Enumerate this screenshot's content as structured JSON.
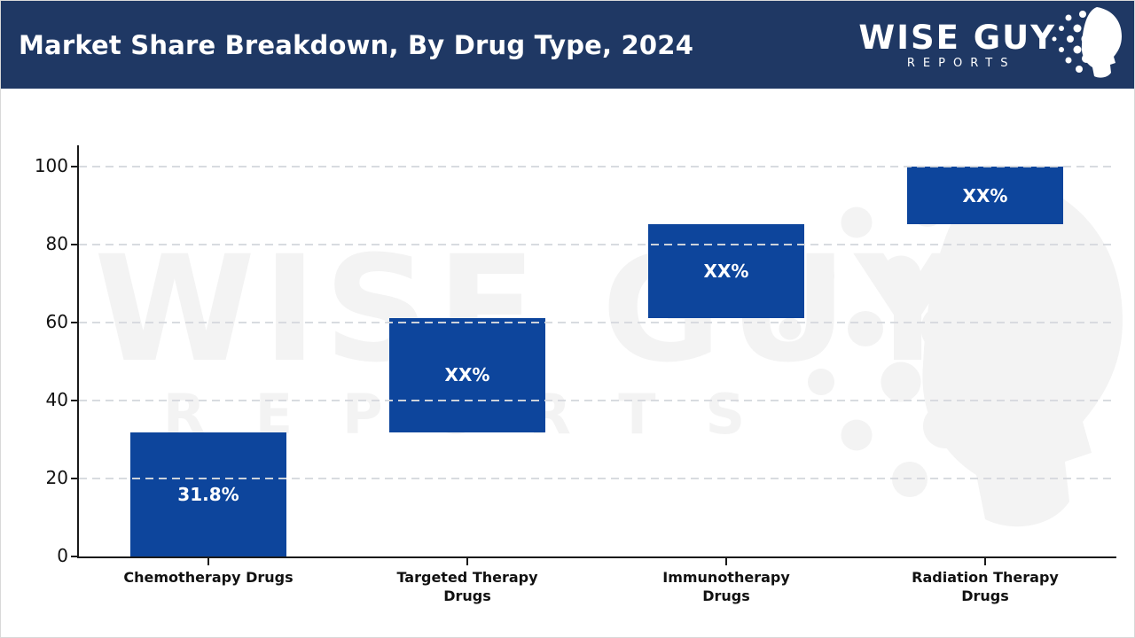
{
  "header": {
    "title": "Market Share Breakdown, By Drug Type, 2024",
    "logo": {
      "name": "WISE GUY",
      "sub": "REPORTS"
    }
  },
  "watermark": {
    "name": "WISE GUY",
    "sub": "REPORTS"
  },
  "chart_data": {
    "type": "bar",
    "subtype": "waterfall",
    "title": "Market Share Breakdown, By Drug Type, 2024",
    "categories": [
      "Chemotherapy Drugs",
      "Targeted Therapy Drugs",
      "Immunotherapy Drugs",
      "Radiation Therapy Drugs"
    ],
    "category_label_lines": [
      [
        "Chemotherapy Drugs"
      ],
      [
        "Targeted Therapy",
        "Drugs"
      ],
      [
        "Immunotherapy",
        "Drugs"
      ],
      [
        "Radiation Therapy",
        "Drugs"
      ]
    ],
    "segments": [
      {
        "category": "Chemotherapy Drugs",
        "start": 0,
        "end": 31.8,
        "label": "31.8%"
      },
      {
        "category": "Targeted Therapy Drugs",
        "start": 31.8,
        "end": 61.2,
        "label": "XX%"
      },
      {
        "category": "Immunotherapy Drugs",
        "start": 61.2,
        "end": 85.2,
        "label": "XX%"
      },
      {
        "category": "Radiation Therapy Drugs",
        "start": 85.2,
        "end": 100,
        "label": "XX%"
      }
    ],
    "xlabel": "",
    "ylabel": "",
    "ylim": [
      0,
      100
    ],
    "yticks": [
      0,
      20,
      40,
      60,
      80,
      100
    ],
    "grid": "horizontal-dashed",
    "legend_position": "none"
  },
  "colors": {
    "header_bg": "#1f3864",
    "bar": "#0d459c",
    "bar_label": "#ffffff",
    "axis": "#1a1a1a",
    "gridline": "#d9dade",
    "watermark": "#f3f3f3",
    "title_text": "#ffffff"
  }
}
